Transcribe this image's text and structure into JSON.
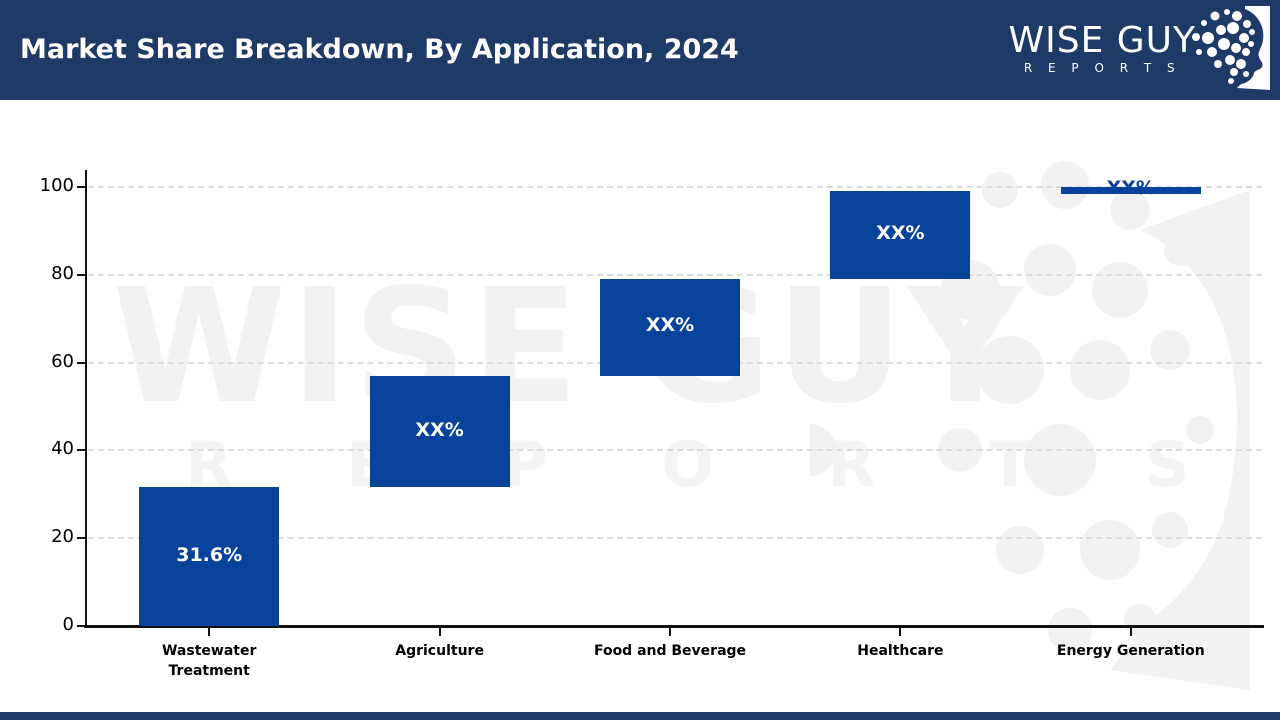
{
  "header": {
    "title": "Market Share Breakdown, By Application, 2024",
    "logo": {
      "wordmark": "WISE GUY",
      "subtext": "R E P O R T S"
    }
  },
  "watermark": {
    "wordmark": "WISE GUY",
    "subtext": "R E P O R T S"
  },
  "colors": {
    "header_bg": "#1e3a66",
    "bar_fill": "#07429b",
    "bar_label_text": "#ffffff",
    "grid_line": "#dcdcdc",
    "axis_line": "#111111",
    "watermark_text": "#f2f2f2"
  },
  "chart_data": {
    "type": "bar",
    "variant": "waterfall",
    "title": "Market Share Breakdown, By Application, 2024",
    "categories": [
      "Wastewater Treatment",
      "Agriculture",
      "Food and Beverage",
      "Healthcare",
      "Energy Generation"
    ],
    "segments": [
      {
        "category": "Wastewater Treatment",
        "display": "Wastewater\nTreatment",
        "label": "31.6%",
        "start": 0,
        "end": 31.6
      },
      {
        "category": "Agriculture",
        "display": "Agriculture",
        "label": "XX%",
        "start": 31.6,
        "end": 57
      },
      {
        "category": "Food and Beverage",
        "display": "Food and Beverage",
        "label": "XX%",
        "start": 57,
        "end": 79
      },
      {
        "category": "Healthcare",
        "display": "Healthcare",
        "label": "XX%",
        "start": 79,
        "end": 99
      },
      {
        "category": "Energy Generation",
        "display": "Energy Generation",
        "label": "XX%",
        "start": 99,
        "end": 100
      }
    ],
    "yticks": [
      0,
      20,
      40,
      60,
      80,
      100
    ],
    "ylim": [
      0,
      105
    ],
    "xlabel": "",
    "ylabel": "",
    "grid": "horizontal-dashed",
    "legend_position": "none"
  }
}
